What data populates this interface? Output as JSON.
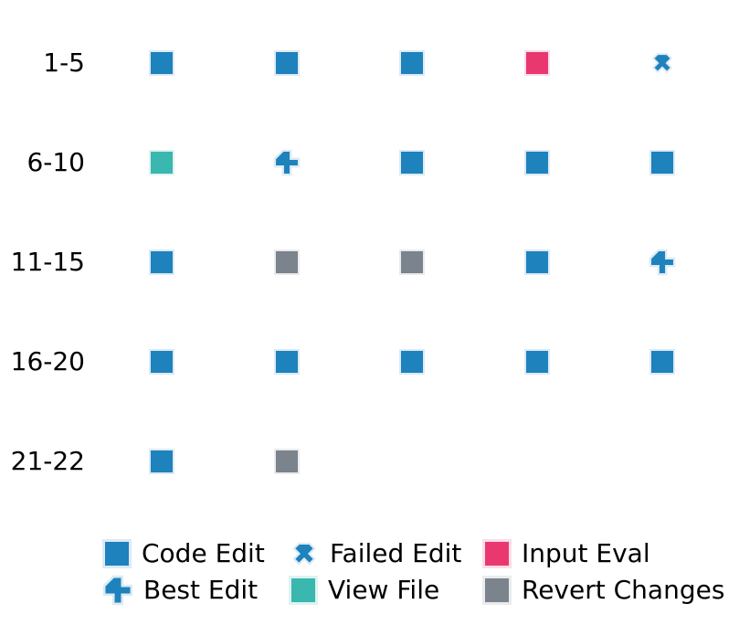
{
  "chart_data": {
    "type": "scatter",
    "title": "",
    "xlabel": "",
    "ylabel": "",
    "columns": 5,
    "x_positions": [
      1,
      2,
      3,
      4,
      5
    ],
    "categories": [
      "1-5",
      "6-10",
      "11-15",
      "16-20",
      "21-22"
    ],
    "rows": [
      {
        "label": "1-5",
        "markers": [
          "code_edit",
          "code_edit",
          "code_edit",
          "input_eval",
          "failed_edit"
        ]
      },
      {
        "label": "6-10",
        "markers": [
          "view_file",
          "best_edit",
          "code_edit",
          "code_edit",
          "code_edit"
        ]
      },
      {
        "label": "11-15",
        "markers": [
          "code_edit",
          "revert_changes",
          "revert_changes",
          "code_edit",
          "best_edit"
        ]
      },
      {
        "label": "16-20",
        "markers": [
          "code_edit",
          "code_edit",
          "code_edit",
          "code_edit",
          "code_edit"
        ]
      },
      {
        "label": "21-22",
        "markers": [
          "code_edit",
          "revert_changes"
        ]
      }
    ],
    "marker_styles": {
      "code_edit": {
        "label": "Code Edit",
        "shape": "square",
        "color": "#1e82bd",
        "edge": "#ddeaf5"
      },
      "failed_edit": {
        "label": "Failed Edit",
        "shape": "x",
        "color": "#1e82bd",
        "edge": "#ddeaf5"
      },
      "input_eval": {
        "label": "Input Eval",
        "shape": "square",
        "color": "#e9386f",
        "edge": "#fbdde8"
      },
      "best_edit": {
        "label": "Best Edit",
        "shape": "plus",
        "color": "#1e82bd",
        "edge": "#ddeaf5"
      },
      "view_file": {
        "label": "View File",
        "shape": "square",
        "color": "#3ab7ae",
        "edge": "#def3f1"
      },
      "revert_changes": {
        "label": "Revert Changes",
        "shape": "square",
        "color": "#7b838c",
        "edge": "#e9ebed"
      }
    },
    "legend": {
      "position": "bottom",
      "rows": 2,
      "columns": 3,
      "order": [
        "code_edit",
        "failed_edit",
        "input_eval",
        "best_edit",
        "view_file",
        "revert_changes"
      ],
      "labels": [
        "Code Edit",
        "Failed Edit",
        "Input Eval",
        "Best Edit",
        "View File",
        "Revert Changes"
      ]
    },
    "grid": "off",
    "background_color": "#ffffff",
    "text_color": "#000000"
  }
}
